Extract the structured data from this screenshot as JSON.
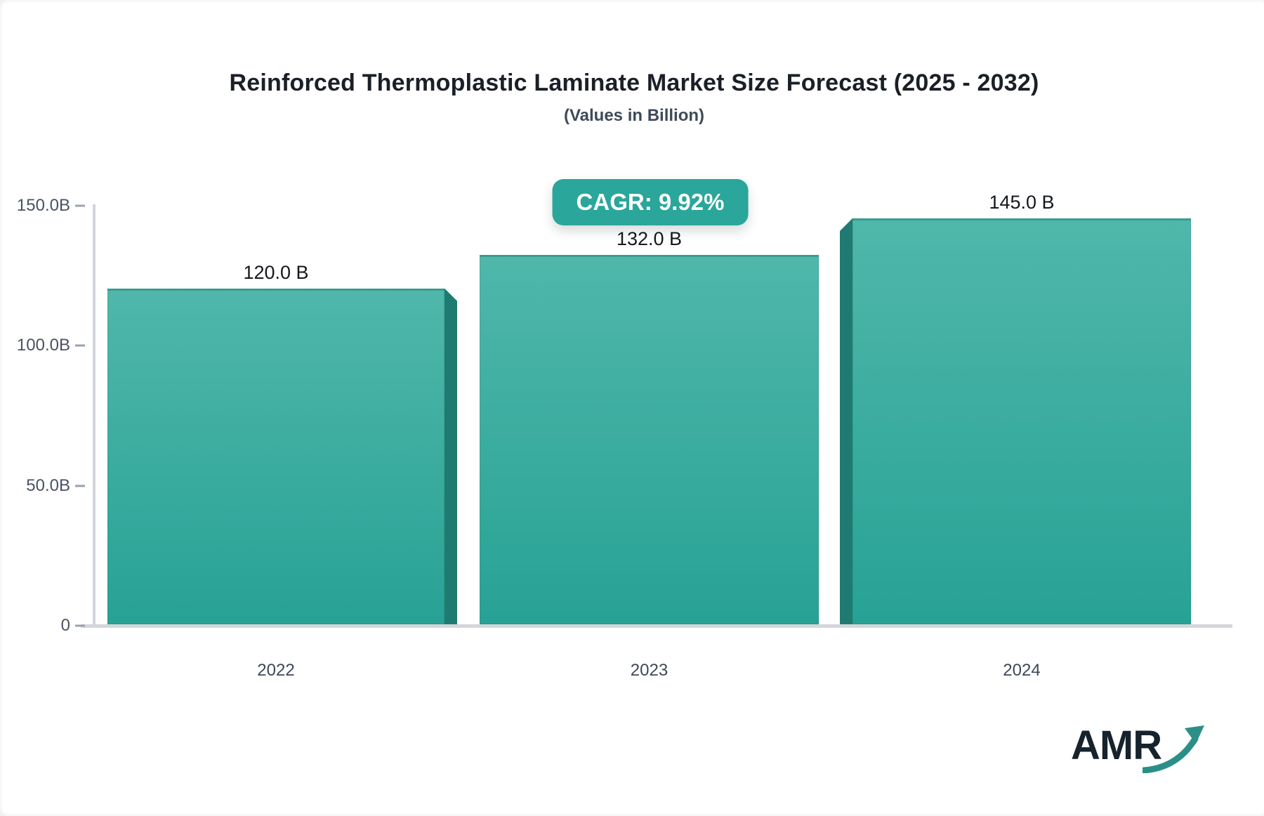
{
  "title": "Reinforced Thermoplastic Laminate Market Size Forecast (2025 - 2032)",
  "subtitle": "(Values in Billion)",
  "annotation": {
    "cagr_label": "CAGR: 9.92%"
  },
  "logo": {
    "text": "AMR",
    "arrow_icon": "trend-up-arrow",
    "arrow_color": "#2b8f88",
    "text_color": "#16222c"
  },
  "colors": {
    "bar_gradient_top": "#50b7ab",
    "bar_gradient_bottom": "#27a295",
    "bar_bevel": "#1f7b71",
    "badge_background": "#2aa69a",
    "axis_line": "#d2d6dc",
    "tick_mark": "#9ba2ae",
    "axis_text": "#4a5263"
  },
  "chart_data": {
    "type": "bar",
    "categories": [
      "2022",
      "2023",
      "2024"
    ],
    "values": [
      120.0,
      132.0,
      145.0
    ],
    "bar_labels": [
      "120.0 B",
      "132.0 B",
      "145.0 B"
    ],
    "unit": "Billion",
    "title": "Reinforced Thermoplastic Laminate Market Size Forecast (2025 - 2032)",
    "subtitle": "(Values in Billion)",
    "xlabel": "",
    "ylabel": "",
    "ylim": [
      0,
      150
    ],
    "y_ticks": [
      {
        "label": "150.0B",
        "value": 150
      },
      {
        "label": "100.0B",
        "value": 100
      },
      {
        "label": "50.0B",
        "value": 50
      },
      {
        "label": "0",
        "value": 0
      }
    ],
    "grid": false,
    "legend": false,
    "annotations": [
      {
        "text": "CAGR: 9.92%",
        "anchor_category": "2023",
        "position": "above-bar"
      }
    ]
  }
}
